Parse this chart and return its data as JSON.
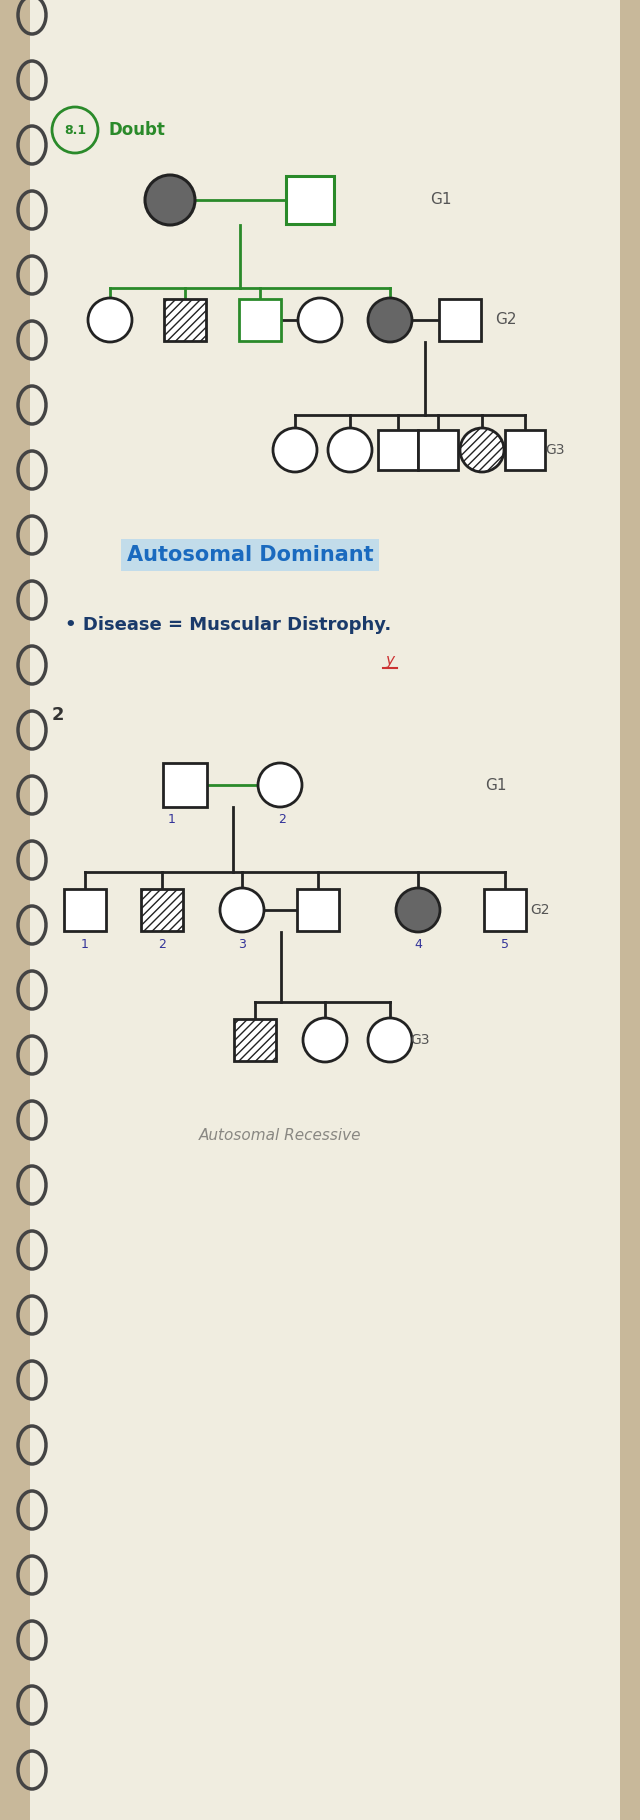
{
  "bg_color": "#c8b89a",
  "paper_color": "#f0ede0",
  "title1": "Autosomal Dominant",
  "title1_color": "#1a6abf",
  "title2": "• Disease = Muscular Distrophy.",
  "title2_color": "#1a3a6a",
  "label_g1": "G1",
  "label_g2": "G2",
  "label_g3": "G3",
  "problem_label": "8.1",
  "problem_label_color": "#2a8a2a",
  "doubt_label": "Doubt",
  "doubt_color": "#2a8a2a",
  "section2_num": "2",
  "label_g1_2": "G1",
  "label_g2_2": "G2",
  "label_g3_2": "G3",
  "line_color_green": "#2a8a2a",
  "line_color_black": "#222222",
  "shape_color_filled": "#666666",
  "shape_color_empty": "#ffffff"
}
